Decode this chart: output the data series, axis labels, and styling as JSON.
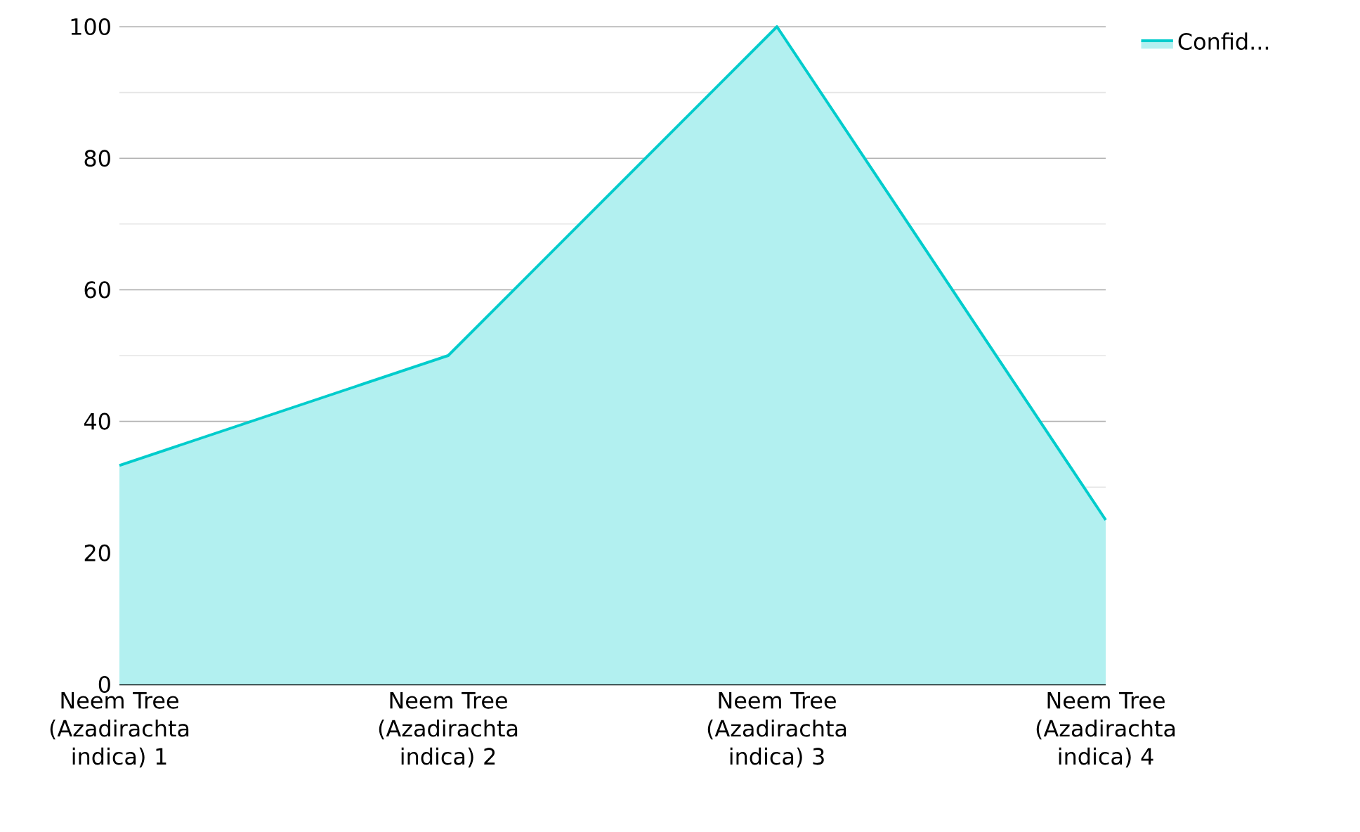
{
  "chart_data": {
    "type": "area",
    "categories": [
      "Neem Tree (Azadirachta indica) 1",
      "Neem Tree (Azadirachta indica) 2",
      "Neem Tree (Azadirachta indica) 3",
      "Neem Tree (Azadirachta indica) 4"
    ],
    "series": [
      {
        "name": "Confid...",
        "color": "#00cccc",
        "values": [
          33.3,
          50,
          100,
          25
        ]
      }
    ],
    "ylim": [
      0,
      100
    ],
    "yticks": [
      0,
      20,
      40,
      60,
      80,
      100
    ],
    "grid": "y",
    "legend": "top right",
    "marker": "none",
    "line_style": "solid"
  }
}
